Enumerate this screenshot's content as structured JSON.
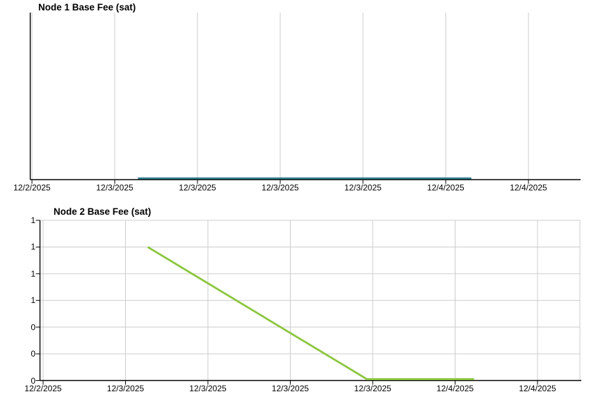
{
  "chart_data": [
    {
      "type": "line",
      "title": "Node 1 Base Fee (sat)",
      "xlabel": "",
      "ylabel": "",
      "x_tick_labels": [
        "12/2/2025",
        "12/3/2025",
        "12/3/2025",
        "12/3/2025",
        "12/3/2025",
        "12/4/2025",
        "12/4/2025"
      ],
      "y_tick_labels": [],
      "grid": "vertical gridlines only",
      "legend": "none",
      "series": [
        {
          "name": "node1-base-fee",
          "color": "#1e7482",
          "description": "constant base fee, flat line hugging the x-axis from shortly after the 2nd tick (12/3/2025) to past the 6th tick (12/4/2025)",
          "points": [
            {
              "x_tick_index": 1.28,
              "y_frac_from_top": 0.992
            },
            {
              "x_tick_index": 5.31,
              "y_frac_from_top": 0.992
            }
          ]
        }
      ]
    },
    {
      "type": "line",
      "title": "Node 2 Base Fee (sat)",
      "xlabel": "",
      "ylabel": "",
      "x_tick_labels": [
        "12/2/2025",
        "12/3/2025",
        "12/3/2025",
        "12/3/2025",
        "12/3/2025",
        "12/4/2025",
        "12/4/2025"
      ],
      "y_tick_labels": [
        "1",
        "1",
        "1",
        "1",
        "0",
        "0",
        "0"
      ],
      "ylim": [
        0,
        1.2
      ],
      "y_tick_step": 0.2,
      "grid": "full grid (vertical and horizontal)",
      "legend": "none",
      "series": [
        {
          "name": "node2-base-fee",
          "color": "#8cc63e",
          "description": "base fee starts at 1, declines linearly to ~0 by the 5th tick (12/3/2025), then stays flat just above 0",
          "points": [
            {
              "x_tick_index": 1.27,
              "value": 1.0
            },
            {
              "x_tick_index": 3.93,
              "value": 0.01
            },
            {
              "x_tick_index": 5.23,
              "value": 0.01
            }
          ]
        }
      ]
    }
  ],
  "colors": {
    "gridline": "#cccccc",
    "axis": "#000000",
    "background": "#ffffff",
    "node1_line": "#1e7482",
    "node2_line": "#8cc63e"
  }
}
